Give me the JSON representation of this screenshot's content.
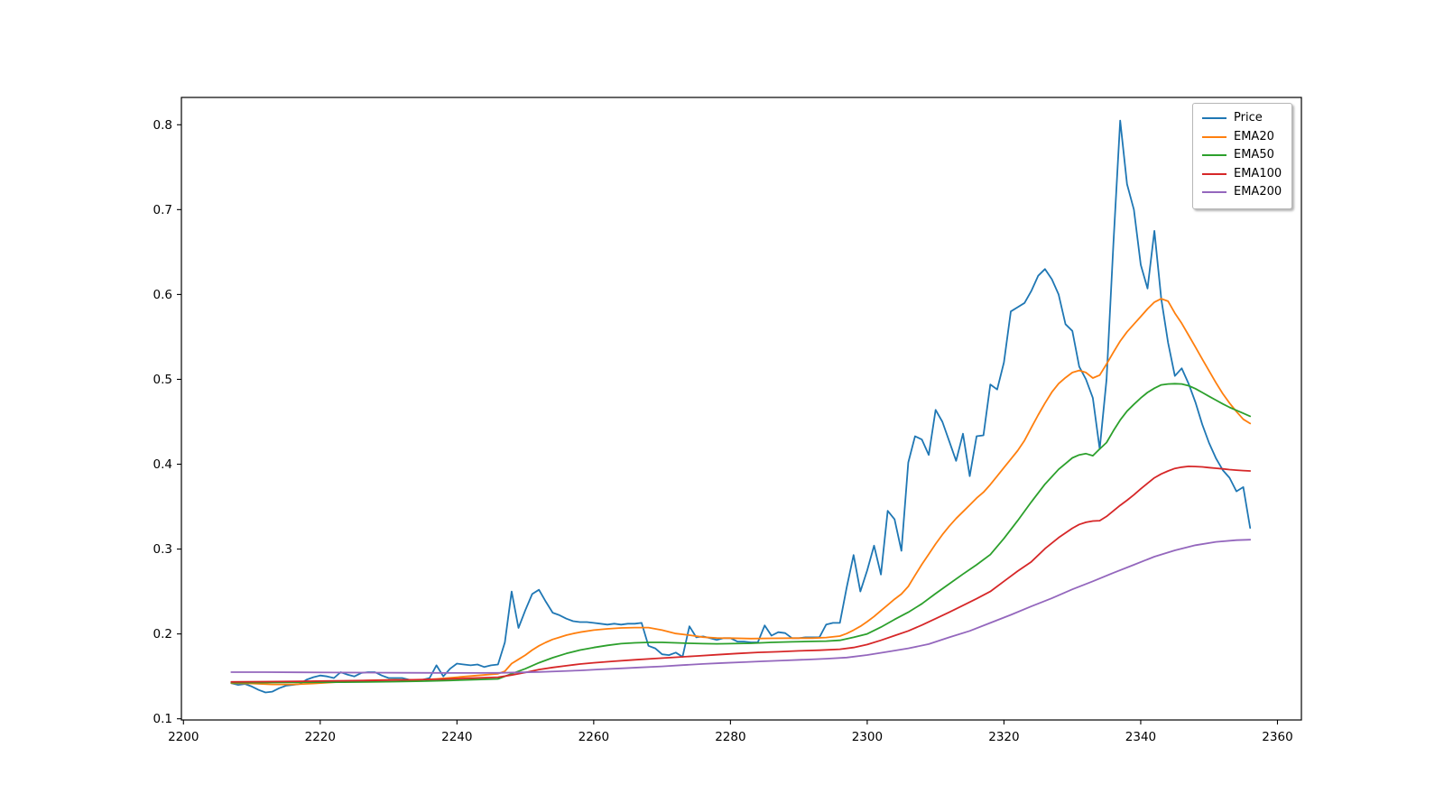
{
  "figure": {
    "background": "#ffffff"
  },
  "chart_data": {
    "type": "line",
    "title": "",
    "xlabel": "",
    "ylabel": "",
    "grid": false,
    "xlim": [
      2199.7,
      2363.5
    ],
    "ylim": [
      0.0986,
      0.8322
    ],
    "xticks": [
      2200,
      2220,
      2240,
      2260,
      2280,
      2300,
      2320,
      2340,
      2360
    ],
    "yticks": [
      0.1,
      0.2,
      0.3,
      0.4,
      0.5,
      0.6,
      0.7,
      0.8
    ],
    "legend": {
      "position": "upper-right"
    },
    "axis_color": "#000000",
    "series": [
      {
        "name": "Price",
        "color": "#1f77b4",
        "x_start": 2207,
        "x_step": 1,
        "values": [
          0.142,
          0.14,
          0.141,
          0.138,
          0.134,
          0.131,
          0.132,
          0.136,
          0.139,
          0.14,
          0.141,
          0.146,
          0.149,
          0.151,
          0.15,
          0.148,
          0.155,
          0.152,
          0.15,
          0.154,
          0.155,
          0.155,
          0.151,
          0.148,
          0.148,
          0.148,
          0.146,
          0.145,
          0.146,
          0.148,
          0.163,
          0.15,
          0.159,
          0.165,
          0.164,
          0.163,
          0.164,
          0.161,
          0.163,
          0.164,
          0.19,
          0.25,
          0.207,
          0.228,
          0.247,
          0.252,
          0.238,
          0.225,
          0.222,
          0.218,
          0.215,
          0.214,
          0.214,
          0.213,
          0.212,
          0.211,
          0.212,
          0.211,
          0.212,
          0.212,
          0.213,
          0.186,
          0.183,
          0.176,
          0.175,
          0.178,
          0.173,
          0.209,
          0.196,
          0.197,
          0.195,
          0.193,
          0.195,
          0.195,
          0.191,
          0.191,
          0.19,
          0.19,
          0.21,
          0.198,
          0.202,
          0.201,
          0.195,
          0.195,
          0.196,
          0.196,
          0.196,
          0.211,
          0.213,
          0.213,
          0.255,
          0.293,
          0.25,
          0.275,
          0.304,
          0.27,
          0.345,
          0.335,
          0.298,
          0.402,
          0.433,
          0.429,
          0.411,
          0.464,
          0.45,
          0.427,
          0.404,
          0.436,
          0.386,
          0.433,
          0.434,
          0.494,
          0.488,
          0.52,
          0.58,
          0.585,
          0.59,
          0.604,
          0.622,
          0.63,
          0.618,
          0.6,
          0.565,
          0.557,
          0.515,
          0.5,
          0.478,
          0.418,
          0.5,
          0.66,
          0.805,
          0.73,
          0.7,
          0.635,
          0.607,
          0.675,
          0.595,
          0.543,
          0.504,
          0.513,
          0.495,
          0.473,
          0.447,
          0.425,
          0.407,
          0.393,
          0.384,
          0.368,
          0.373,
          0.325
        ]
      },
      {
        "name": "EMA20",
        "color": "#ff7f0e",
        "x": [
          2207,
          2210,
          2213,
          2216,
          2219,
          2222,
          2225,
          2228,
          2231,
          2234,
          2237,
          2240,
          2243,
          2246,
          2247,
          2248,
          2249,
          2250,
          2251,
          2252,
          2253,
          2254,
          2255,
          2256,
          2257,
          2258,
          2260,
          2262,
          2264,
          2266,
          2268,
          2270,
          2272,
          2274,
          2276,
          2278,
          2280,
          2283,
          2286,
          2289,
          2292,
          2294,
          2296,
          2297,
          2298,
          2299,
          2300,
          2301,
          2302,
          2303,
          2304,
          2305,
          2306,
          2307,
          2308,
          2309,
          2310,
          2311,
          2312,
          2313,
          2314,
          2315,
          2316,
          2317,
          2318,
          2319,
          2320,
          2321,
          2322,
          2323,
          2324,
          2325,
          2326,
          2327,
          2328,
          2329,
          2330,
          2331,
          2332,
          2333,
          2334,
          2335,
          2336,
          2337,
          2338,
          2339,
          2340,
          2341,
          2342,
          2343,
          2344,
          2345,
          2346,
          2347,
          2348,
          2349,
          2350,
          2351,
          2352,
          2353,
          2354,
          2355,
          2356
        ],
        "values": [
          0.142,
          0.1415,
          0.1405,
          0.1405,
          0.1415,
          0.143,
          0.1445,
          0.1455,
          0.146,
          0.1455,
          0.147,
          0.149,
          0.151,
          0.153,
          0.156,
          0.165,
          0.17,
          0.175,
          0.181,
          0.186,
          0.19,
          0.1935,
          0.196,
          0.1985,
          0.2005,
          0.202,
          0.2045,
          0.206,
          0.207,
          0.2075,
          0.2075,
          0.2045,
          0.2005,
          0.1985,
          0.1962,
          0.1952,
          0.195,
          0.1945,
          0.1948,
          0.195,
          0.195,
          0.1958,
          0.1975,
          0.2005,
          0.2045,
          0.209,
          0.2145,
          0.2205,
          0.2275,
          0.234,
          0.241,
          0.247,
          0.256,
          0.269,
          0.282,
          0.294,
          0.306,
          0.317,
          0.327,
          0.336,
          0.344,
          0.352,
          0.36,
          0.367,
          0.376,
          0.386,
          0.396,
          0.406,
          0.416,
          0.428,
          0.443,
          0.458,
          0.472,
          0.485,
          0.495,
          0.502,
          0.508,
          0.5105,
          0.508,
          0.5015,
          0.505,
          0.518,
          0.532,
          0.545,
          0.556,
          0.565,
          0.574,
          0.583,
          0.591,
          0.595,
          0.592,
          0.578,
          0.566,
          0.552,
          0.538,
          0.524,
          0.51,
          0.496,
          0.483,
          0.472,
          0.462,
          0.453,
          0.448
        ]
      },
      {
        "name": "EMA50",
        "color": "#2ca02c",
        "x": [
          2207,
          2211,
          2215,
          2219,
          2223,
          2227,
          2231,
          2235,
          2239,
          2243,
          2246,
          2248,
          2250,
          2252,
          2254,
          2256,
          2258,
          2260,
          2262,
          2264,
          2266,
          2268,
          2270,
          2272,
          2274,
          2276,
          2278,
          2280,
          2283,
          2286,
          2289,
          2292,
          2294,
          2296,
          2298,
          2300,
          2302,
          2304,
          2306,
          2308,
          2310,
          2312,
          2314,
          2316,
          2318,
          2320,
          2322,
          2324,
          2326,
          2328,
          2330,
          2331,
          2332,
          2333,
          2334,
          2335,
          2336,
          2337,
          2338,
          2339,
          2340,
          2341,
          2342,
          2343,
          2344,
          2345,
          2346,
          2347,
          2348,
          2349,
          2350,
          2351,
          2352,
          2353,
          2354,
          2355,
          2356
        ],
        "values": [
          0.1425,
          0.1426,
          0.1428,
          0.143,
          0.1432,
          0.1435,
          0.1438,
          0.1443,
          0.1452,
          0.1462,
          0.147,
          0.153,
          0.159,
          0.166,
          0.172,
          0.177,
          0.181,
          0.184,
          0.1865,
          0.1885,
          0.1895,
          0.19,
          0.19,
          0.1895,
          0.189,
          0.1885,
          0.1883,
          0.1885,
          0.189,
          0.19,
          0.1907,
          0.1912,
          0.1915,
          0.1925,
          0.196,
          0.2,
          0.208,
          0.217,
          0.2255,
          0.2355,
          0.2475,
          0.259,
          0.2705,
          0.2815,
          0.2935,
          0.3125,
          0.3335,
          0.3555,
          0.3765,
          0.394,
          0.4075,
          0.411,
          0.4125,
          0.41,
          0.418,
          0.4255,
          0.4395,
          0.452,
          0.4625,
          0.4705,
          0.478,
          0.4845,
          0.4895,
          0.4935,
          0.4945,
          0.4948,
          0.4945,
          0.4925,
          0.489,
          0.4845,
          0.48,
          0.4755,
          0.471,
          0.467,
          0.4635,
          0.46,
          0.4565
        ]
      },
      {
        "name": "EMA100",
        "color": "#d62728",
        "x": [
          2207,
          2212,
          2217,
          2222,
          2227,
          2232,
          2237,
          2242,
          2246,
          2248,
          2250,
          2252,
          2254,
          2256,
          2258,
          2260,
          2263,
          2266,
          2269,
          2272,
          2275,
          2278,
          2281,
          2284,
          2287,
          2290,
          2293,
          2296,
          2298,
          2300,
          2302,
          2304,
          2306,
          2308,
          2310,
          2312,
          2314,
          2316,
          2318,
          2320,
          2322,
          2324,
          2326,
          2328,
          2330,
          2331,
          2332,
          2333,
          2334,
          2335,
          2336,
          2337,
          2338,
          2339,
          2340,
          2341,
          2342,
          2343,
          2344,
          2345,
          2346,
          2347,
          2348,
          2349,
          2350,
          2351,
          2352,
          2353,
          2354,
          2355,
          2356
        ],
        "values": [
          0.1435,
          0.1438,
          0.1442,
          0.1447,
          0.1452,
          0.1458,
          0.1465,
          0.1478,
          0.149,
          0.1515,
          0.1545,
          0.158,
          0.1605,
          0.1625,
          0.1645,
          0.166,
          0.1678,
          0.1695,
          0.171,
          0.1725,
          0.174,
          0.1755,
          0.177,
          0.1782,
          0.179,
          0.18,
          0.1808,
          0.182,
          0.184,
          0.1875,
          0.1925,
          0.198,
          0.2035,
          0.2105,
          0.218,
          0.2255,
          0.2335,
          0.2415,
          0.25,
          0.262,
          0.274,
          0.285,
          0.3005,
          0.3135,
          0.3245,
          0.329,
          0.3315,
          0.333,
          0.3335,
          0.3385,
          0.345,
          0.3515,
          0.3575,
          0.364,
          0.371,
          0.3775,
          0.384,
          0.3885,
          0.392,
          0.395,
          0.3965,
          0.3975,
          0.3972,
          0.3968,
          0.396,
          0.3952,
          0.3945,
          0.3936,
          0.393,
          0.3925,
          0.392
        ]
      },
      {
        "name": "EMA200",
        "color": "#9467bd",
        "x": [
          2207,
          2212,
          2217,
          2222,
          2227,
          2232,
          2237,
          2242,
          2246,
          2249,
          2252,
          2255,
          2258,
          2261,
          2264,
          2267,
          2270,
          2273,
          2276,
          2279,
          2282,
          2285,
          2288,
          2291,
          2294,
          2297,
          2300,
          2303,
          2306,
          2309,
          2312,
          2315,
          2318,
          2321,
          2324,
          2327,
          2330,
          2333,
          2336,
          2339,
          2342,
          2345,
          2348,
          2351,
          2354,
          2356
        ],
        "values": [
          0.155,
          0.1549,
          0.1547,
          0.1545,
          0.1544,
          0.1542,
          0.1541,
          0.154,
          0.1541,
          0.1546,
          0.1552,
          0.156,
          0.157,
          0.1582,
          0.1594,
          0.1606,
          0.1618,
          0.1632,
          0.1646,
          0.1658,
          0.1668,
          0.1678,
          0.1688,
          0.1697,
          0.1708,
          0.1722,
          0.1752,
          0.179,
          0.183,
          0.188,
          0.196,
          0.2035,
          0.213,
          0.2225,
          0.2325,
          0.242,
          0.2525,
          0.262,
          0.272,
          0.2815,
          0.291,
          0.2985,
          0.3045,
          0.3085,
          0.3105,
          0.311
        ]
      }
    ]
  }
}
